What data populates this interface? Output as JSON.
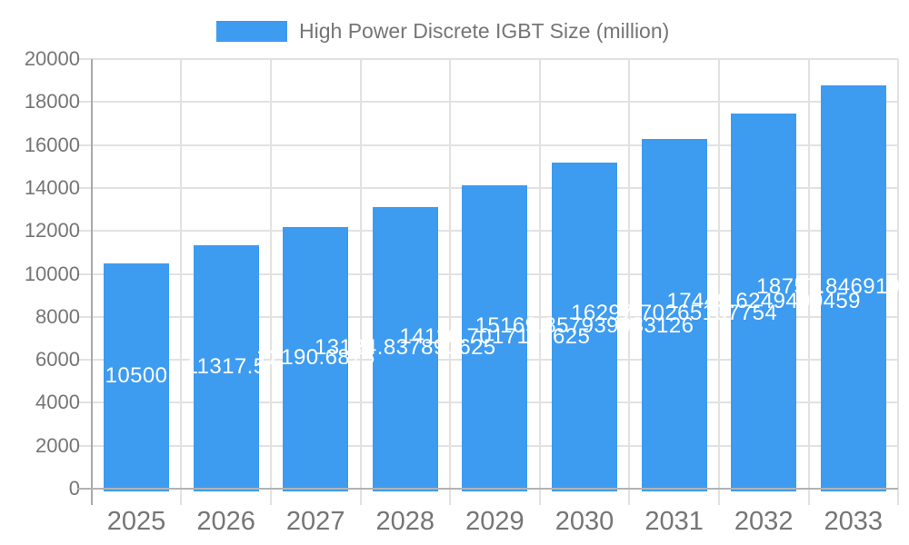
{
  "legend": {
    "label": "High Power Discrete IGBT Size (million)",
    "swatch_color": "#3d9bf0"
  },
  "chart_data": {
    "type": "bar",
    "title": "High Power Discrete IGBT Size (million)",
    "xlabel": "",
    "ylabel": "",
    "categories": [
      "2025",
      "2026",
      "2027",
      "2028",
      "2029",
      "2030",
      "2031",
      "2032",
      "2033"
    ],
    "series": [
      {
        "name": "High Power Discrete IGBT Size (million)",
        "values": [
          10500,
          11317.5,
          12190.6875,
          13124.837890625,
          14110.7017119625,
          15169.857939033125,
          16297.70265137754,
          17449.6249400459,
          18757.8469190459
        ]
      }
    ],
    "value_labels": [
      "10500",
      "11317.5",
      "12190.6875",
      "13124.837890625",
      "14110.7017119625",
      "15169.857939033126",
      "16297.70265137754",
      "17449.6249400459",
      "18757.8469190459"
    ],
    "y_ticks": [
      0,
      2000,
      4000,
      6000,
      8000,
      10000,
      12000,
      14000,
      16000,
      18000,
      20000
    ],
    "y_tick_labels": [
      "0",
      "2000",
      "4000",
      "6000",
      "8000",
      "10000",
      "12000",
      "14000",
      "16000",
      "18000",
      "20000"
    ],
    "ylim": [
      0,
      20000
    ],
    "grid": true,
    "legend_position": "top",
    "bar_color": "#3d9bf0",
    "value_label_color": "#ffffff",
    "axis_text_color": "#757575"
  }
}
